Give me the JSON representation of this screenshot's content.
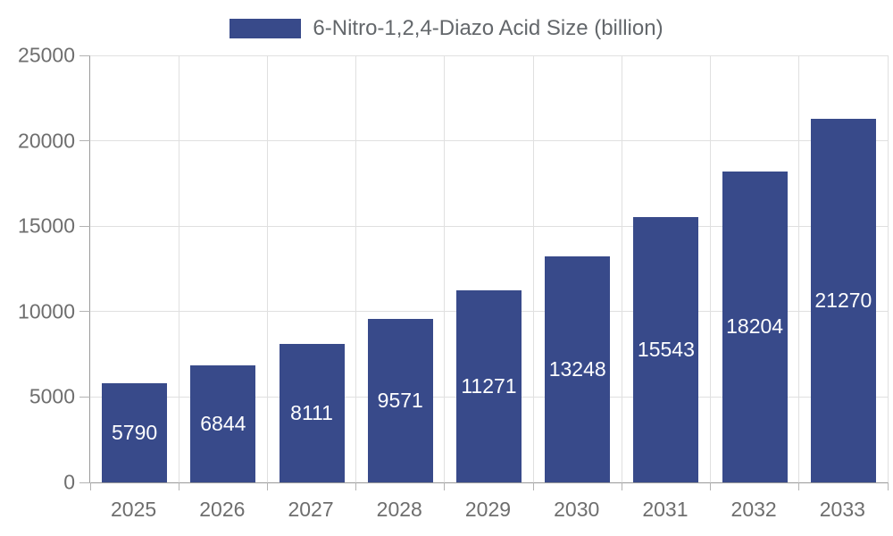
{
  "chart_data": {
    "type": "bar",
    "title": "6-Nitro-1,2,4-Diazo Acid Size (billion)",
    "categories": [
      "2025",
      "2026",
      "2027",
      "2028",
      "2029",
      "2030",
      "2031",
      "2032",
      "2033"
    ],
    "values": [
      5790,
      6844,
      8111,
      9571,
      11271,
      13248,
      15543,
      18204,
      21270
    ],
    "xlabel": "",
    "ylabel": "",
    "ylim": [
      0,
      25000
    ],
    "yticks": [
      0,
      5000,
      10000,
      15000,
      20000,
      25000
    ],
    "grid": true,
    "legend_position": "top-center",
    "colors": {
      "bar": "#384A8A",
      "value_label": "#ffffff",
      "axis_line": "#9a9a9a",
      "grid_line": "#e0e0e0",
      "tick_mark": "#b3b3b3",
      "axis_label": "#6e6e6e",
      "legend_text": "#63676b",
      "background": "#ffffff"
    }
  }
}
